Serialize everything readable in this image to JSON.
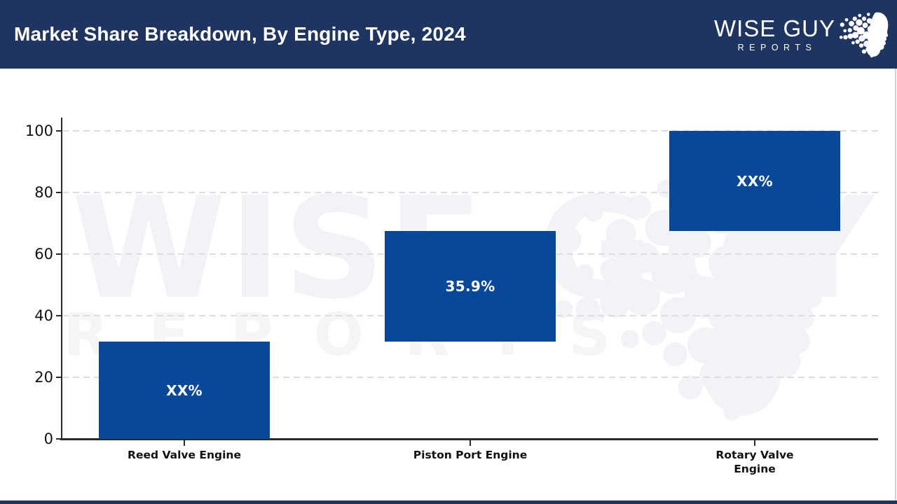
{
  "header": {
    "title": "Market Share Breakdown, By Engine Type, 2024",
    "logo": {
      "line1": "WISE GUY",
      "line2": "REPORTS"
    }
  },
  "watermark": {
    "line1": "WISE GUY",
    "line2": "REPORTS"
  },
  "colors": {
    "header_bg": "#1F3561",
    "footer_bg": "#1F3561",
    "bar": "#08489B",
    "bar_label": "#FFFFFF",
    "grid": "#DEDEDE",
    "axis": "#2B2B2B",
    "watermark": "#F2F3F6"
  },
  "chart_data": {
    "type": "bar",
    "variant": "waterfall-stacked-percentage",
    "title": "Market Share Breakdown, By Engine Type, 2024",
    "categories": [
      "Reed Valve Engine",
      "Piston Port Engine",
      "Rotary Valve\nEngine"
    ],
    "segments": [
      {
        "category": "Reed Valve Engine",
        "start": 0,
        "end": 31.5,
        "label": "XX%"
      },
      {
        "category": "Piston Port Engine",
        "start": 31.5,
        "end": 67.4,
        "label": "35.9%"
      },
      {
        "category": "Rotary Valve Engine",
        "start": 67.4,
        "end": 100,
        "label": "XX%"
      }
    ],
    "xlabel": "",
    "ylabel": "",
    "ylim": [
      0,
      100
    ],
    "yticks": [
      0,
      20,
      40,
      60,
      80,
      100
    ],
    "grid": "horizontal-dashed",
    "legend": "none"
  }
}
